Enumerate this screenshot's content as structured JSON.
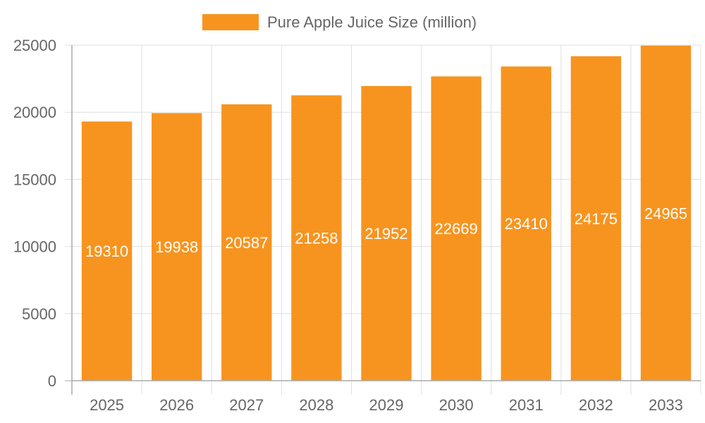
{
  "chart_data": {
    "type": "bar",
    "title": "",
    "legend": [
      "Pure Apple Juice Size (million)"
    ],
    "legend_position": "top",
    "categories": [
      "2025",
      "2026",
      "2027",
      "2028",
      "2029",
      "2030",
      "2031",
      "2032",
      "2033"
    ],
    "series": [
      {
        "name": "Pure Apple Juice Size (million)",
        "color": "#f79420",
        "values": [
          19310,
          19938,
          20587,
          21258,
          21952,
          22669,
          23410,
          24175,
          24965
        ]
      }
    ],
    "xlabel": "",
    "ylabel": "",
    "ylim": [
      0,
      25000
    ],
    "yticks": [
      0,
      5000,
      10000,
      15000,
      20000,
      25000
    ],
    "grid": true,
    "data_labels": true
  },
  "colors": {
    "bar": "#f79420",
    "grid": "#e0e0e0",
    "axis": "#aaaaaa",
    "text": "#666666",
    "label": "#ffffff"
  }
}
